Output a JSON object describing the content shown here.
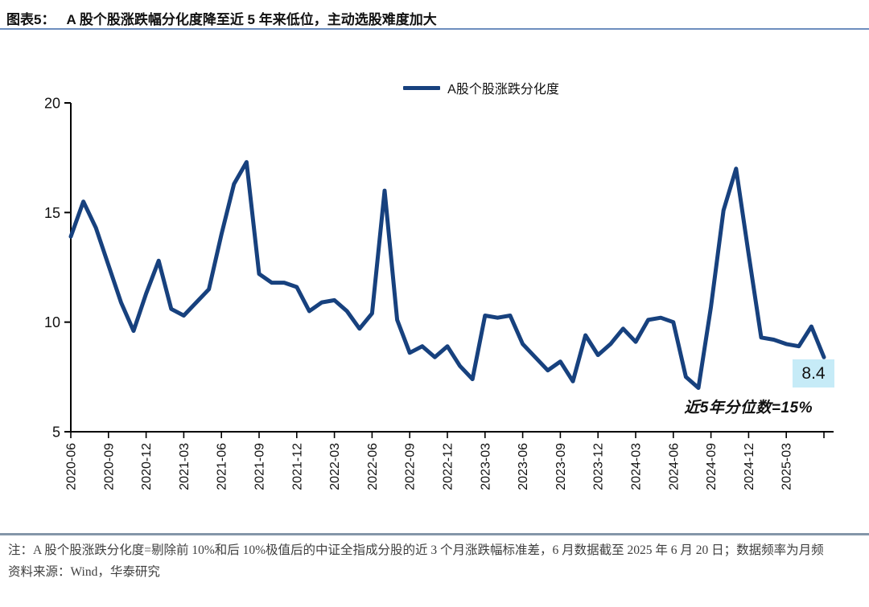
{
  "title": {
    "label": "图表5：",
    "text": "A 股个股涨跌幅分化度降至近 5 年来低位，主动选股难度加大"
  },
  "legend": {
    "label": "A股个股涨跌分化度"
  },
  "annotations": {
    "last_value": "8.4",
    "percentile": "近5年分位数=15%"
  },
  "notes": {
    "note": "注：A 股个股涨跌分化度=剔除前 10%和后 10%极值后的中证全指成分股的近 3 个月涨跌幅标准差，6 月数据截至 2025 年 6 月 20 日；数据频率为月频",
    "source": "资料来源：Wind，华泰研究"
  },
  "colors": {
    "line": "#17417e",
    "highlight": "#c6ebf7",
    "title_rule": "#6d8ebe",
    "notes_rule": "#8496a9",
    "axis": "#000000"
  },
  "chart_data": {
    "type": "line",
    "title": "A股个股涨跌分化度",
    "xlabel": "",
    "ylabel": "",
    "ylim": [
      5,
      20
    ],
    "yticks": [
      5,
      10,
      15,
      20
    ],
    "grid": false,
    "legend_position": "top-center",
    "x": [
      "2020-06",
      "2020-07",
      "2020-08",
      "2020-09",
      "2020-10",
      "2020-11",
      "2020-12",
      "2021-01",
      "2021-02",
      "2021-03",
      "2021-04",
      "2021-05",
      "2021-06",
      "2021-07",
      "2021-08",
      "2021-09",
      "2021-10",
      "2021-11",
      "2021-12",
      "2022-01",
      "2022-02",
      "2022-03",
      "2022-04",
      "2022-05",
      "2022-06",
      "2022-07",
      "2022-08",
      "2022-09",
      "2022-10",
      "2022-11",
      "2022-12",
      "2023-01",
      "2023-02",
      "2023-03",
      "2023-04",
      "2023-05",
      "2023-06",
      "2023-07",
      "2023-08",
      "2023-09",
      "2023-10",
      "2023-11",
      "2023-12",
      "2024-01",
      "2024-02",
      "2024-03",
      "2024-04",
      "2024-05",
      "2024-06",
      "2024-07",
      "2024-08",
      "2024-09",
      "2024-10",
      "2024-11",
      "2024-12",
      "2025-01",
      "2025-02",
      "2025-03",
      "2025-04",
      "2025-05",
      "2025-06"
    ],
    "x_tick_labels": [
      "2020-06",
      "2020-09",
      "2020-12",
      "2021-03",
      "2021-06",
      "2021-09",
      "2021-12",
      "2022-03",
      "2022-06",
      "2022-09",
      "2022-12",
      "2023-03",
      "2023-06",
      "2023-09",
      "2023-12",
      "2024-03",
      "2024-06",
      "2024-09",
      "2024-12",
      "2025-03"
    ],
    "series": [
      {
        "name": "A股个股涨跌分化度",
        "values": [
          13.9,
          15.5,
          14.3,
          12.6,
          10.9,
          9.6,
          11.3,
          12.8,
          10.6,
          10.3,
          10.9,
          11.5,
          14.0,
          16.3,
          17.3,
          12.2,
          11.8,
          11.8,
          11.6,
          10.5,
          10.9,
          11.0,
          10.5,
          9.7,
          10.4,
          16.0,
          10.1,
          8.6,
          8.9,
          8.4,
          8.9,
          8.0,
          7.4,
          10.3,
          10.2,
          10.3,
          9.0,
          8.4,
          7.8,
          8.2,
          7.3,
          9.4,
          8.5,
          9.0,
          9.7,
          9.1,
          10.1,
          10.2,
          10.0,
          7.5,
          7.0,
          10.7,
          15.1,
          17.0,
          13.1,
          9.3,
          9.2,
          9.0,
          8.9,
          9.8,
          8.4
        ]
      }
    ],
    "annotation_last_value": 8.4,
    "annotation_percentile_text": "近5年分位数=15%"
  }
}
